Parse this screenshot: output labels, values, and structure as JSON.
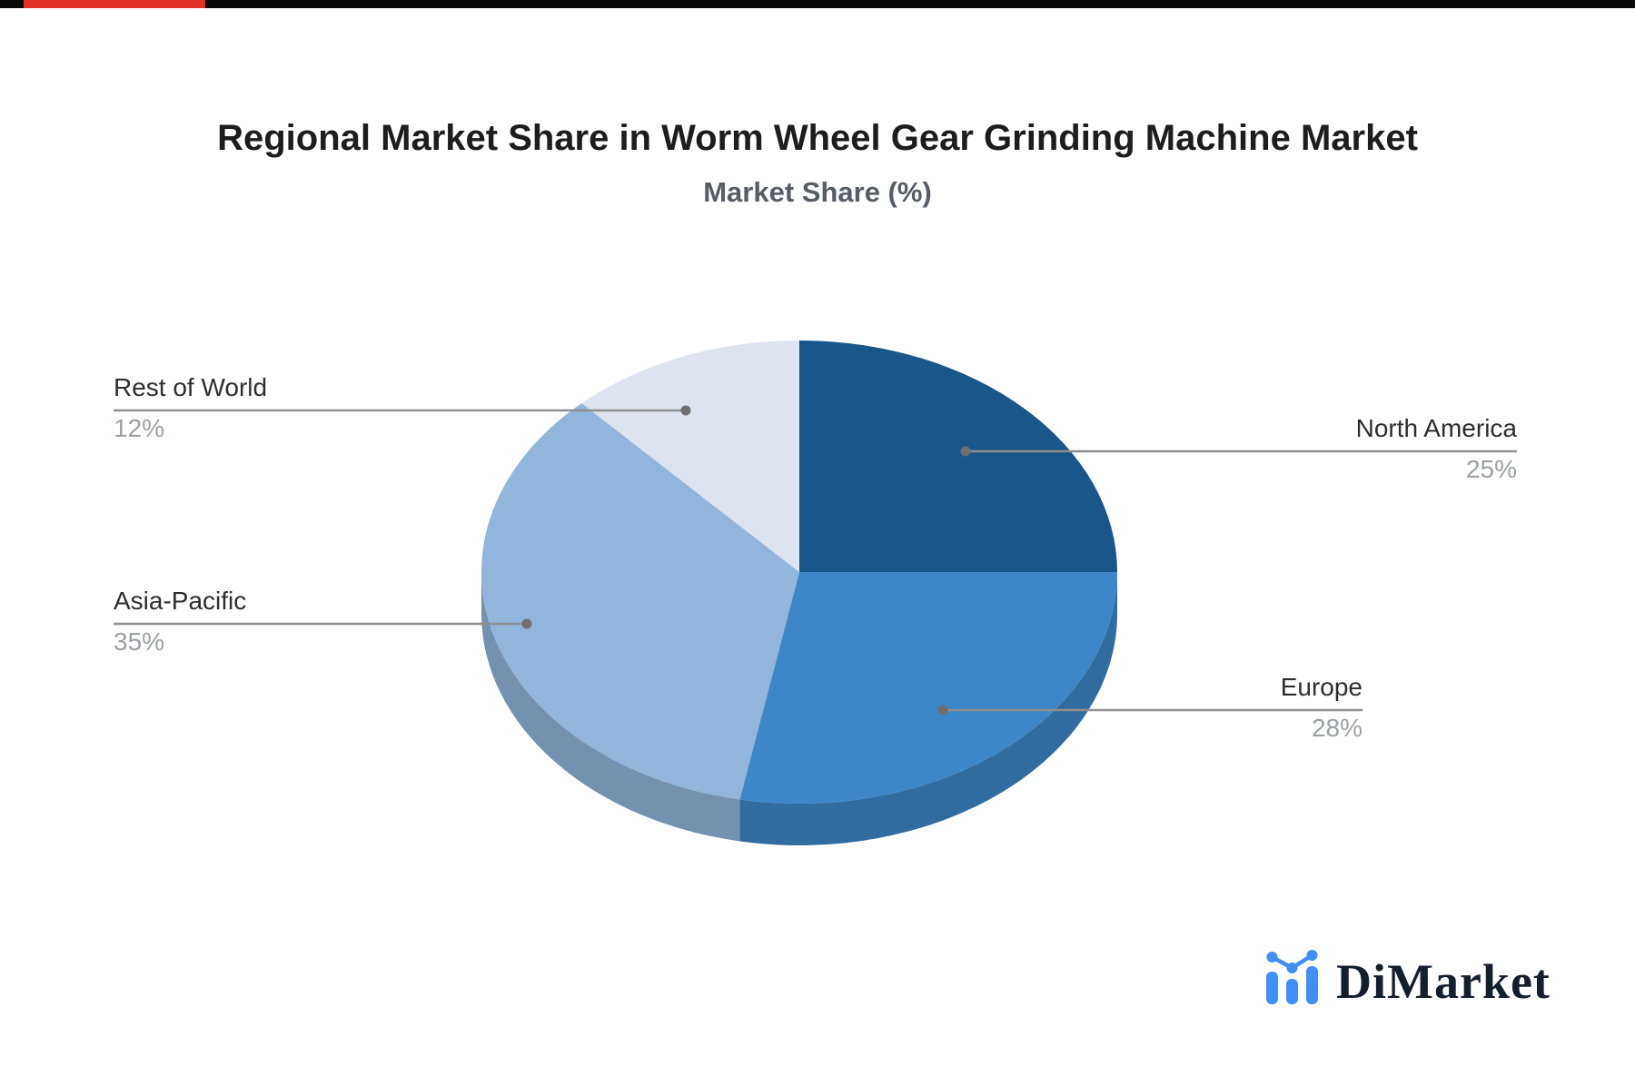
{
  "chart_data": {
    "type": "pie",
    "title": "Regional Market Share in Worm Wheel Gear Grinding Machine Market",
    "subtitle": "Market Share (%)",
    "effect": "3d",
    "legend_position": "callout-labels",
    "series": [
      {
        "label": "North America",
        "value": 25,
        "display": "25%",
        "color": "#19568a"
      },
      {
        "label": "Europe",
        "value": 28,
        "display": "28%",
        "color": "#3d87c9"
      },
      {
        "label": "Asia-Pacific",
        "value": 35,
        "display": "35%",
        "color": "#92b5dc"
      },
      {
        "label": "Rest of World",
        "value": 12,
        "display": "12%",
        "color": "#dde3ef"
      }
    ],
    "callout_line_color": "#8f8f8f",
    "callout_dot_color": "#6f6f6f"
  },
  "branding": {
    "logo_text": "DiMarket",
    "logo_icon": "bar-chart-icon",
    "logo_icon_color": "#3f8ff7",
    "logo_text_color": "#141f2e"
  }
}
